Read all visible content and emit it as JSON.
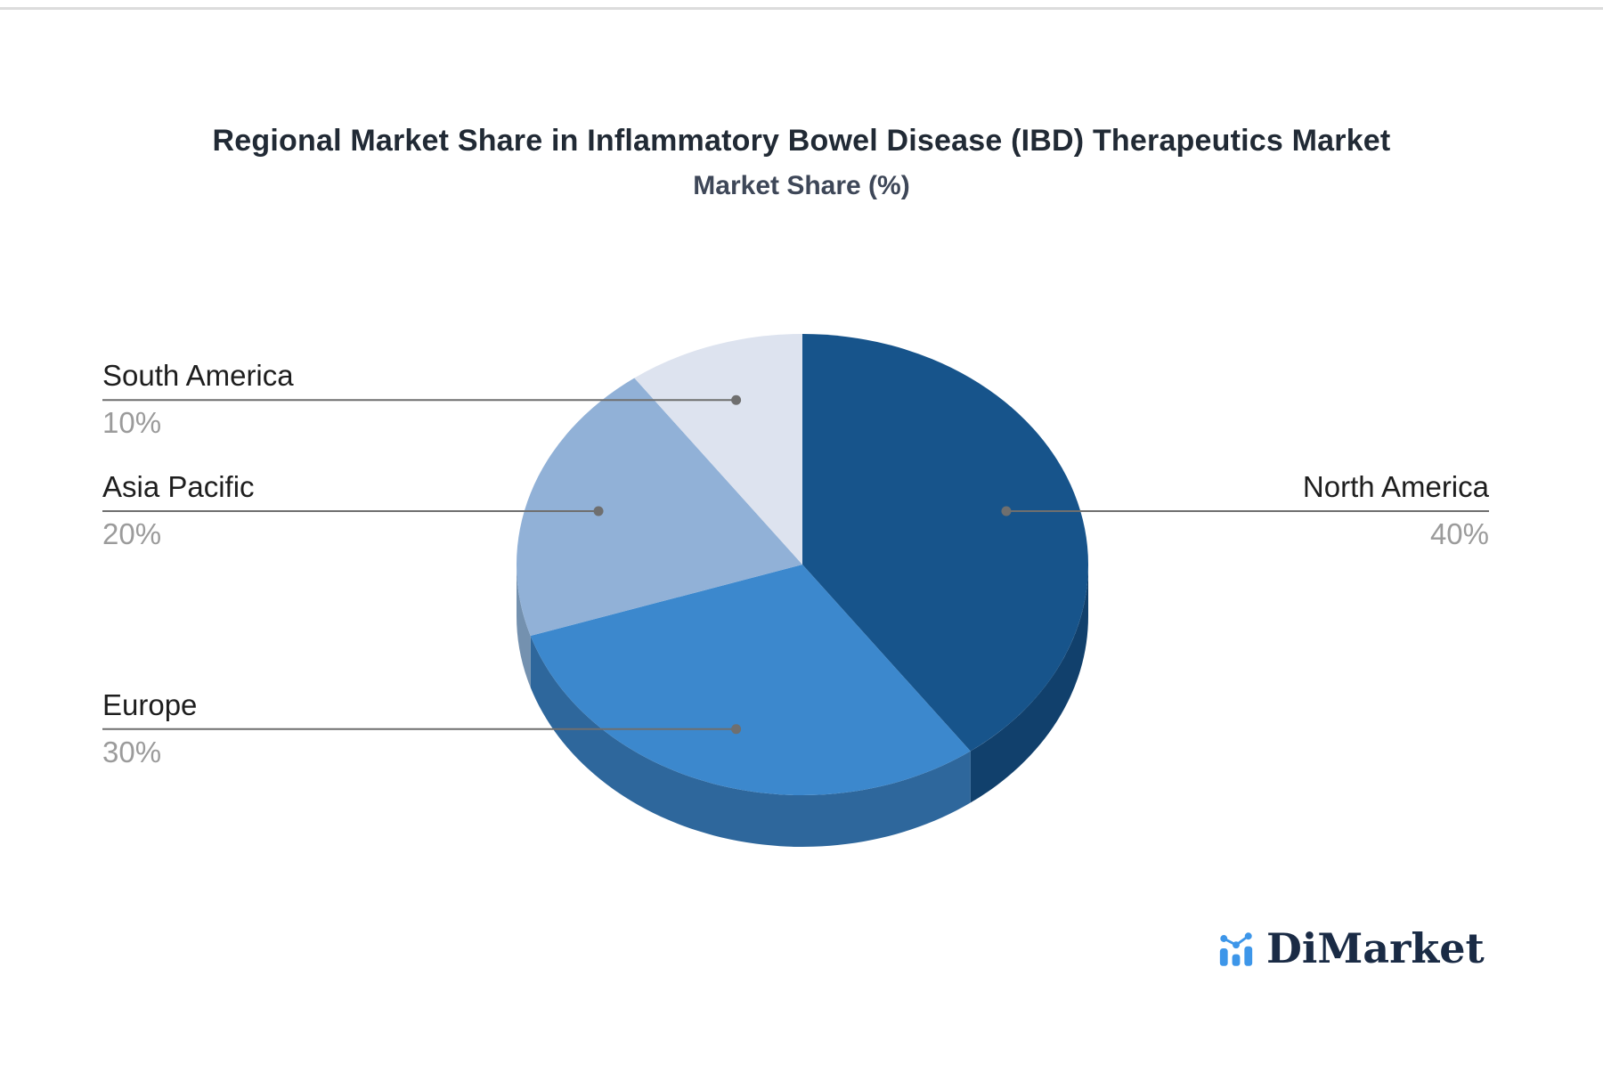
{
  "title": "Regional Market Share in Inflammatory Bowel Disease (IBD) Therapeutics Market",
  "subtitle": "Market Share (%)",
  "logo": {
    "text": "DiMarket",
    "icon": "bar-line-chart-icon",
    "icon_color": "#3d96e9",
    "text_color": "#1a2b45"
  },
  "chart_data": {
    "type": "pie",
    "style": "3d",
    "title": "Regional Market Share in Inflammatory Bowel Disease (IBD) Therapeutics Market",
    "subtitle": "Market Share (%)",
    "unit": "%",
    "start_angle_deg": 0,
    "direction": "clockwise",
    "legend_position": "leader-lines",
    "leader_line_color": "#6f6f6f",
    "label_color": "#1e1e1e",
    "value_color": "#9b9b9b",
    "slices": [
      {
        "label": "North America",
        "value": 40,
        "pct_label": "40%",
        "color": "#17548b",
        "side_color": "#11406c",
        "label_side": "right"
      },
      {
        "label": "Europe",
        "value": 30,
        "pct_label": "30%",
        "color": "#3c88cd",
        "side_color": "#2e679c",
        "label_side": "left"
      },
      {
        "label": "Asia Pacific",
        "value": 20,
        "pct_label": "20%",
        "color": "#91b1d7",
        "side_color": "#7491af",
        "label_side": "left"
      },
      {
        "label": "South America",
        "value": 10,
        "pct_label": "10%",
        "color": "#dde3ef",
        "side_color": "#c2cbdc",
        "label_side": "left"
      }
    ]
  }
}
